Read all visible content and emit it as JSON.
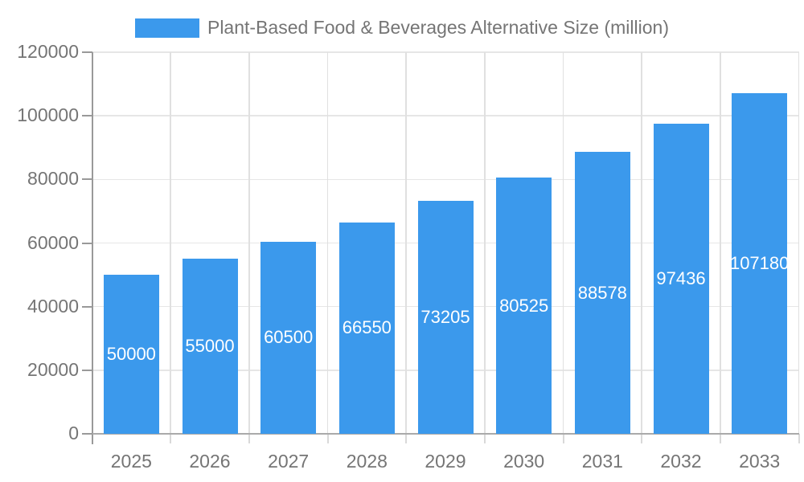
{
  "chart_data": {
    "type": "bar",
    "title": "Plant-Based Food & Beverages Alternative Size (million)",
    "categories": [
      "2025",
      "2026",
      "2027",
      "2028",
      "2029",
      "2030",
      "2031",
      "2032",
      "2033"
    ],
    "values": [
      50000,
      55000,
      60500,
      66550,
      73205,
      80525,
      88578,
      97436,
      107180
    ],
    "bar_labels": [
      "50000",
      "55000",
      "60500",
      "66550",
      "73205",
      "80525",
      "88578",
      "97436",
      "107180"
    ],
    "xlabel": "",
    "ylabel": "",
    "ylim": [
      0,
      120000
    ],
    "yticks": [
      "0",
      "20000",
      "40000",
      "60000",
      "80000",
      "100000",
      "120000"
    ],
    "grid": true,
    "legend": {
      "position": "top",
      "label": "Plant-Based Food & Beverages Alternative Size (million)"
    }
  },
  "colors": {
    "bar": "#3b99ec",
    "bar_value_text": "#ffffff",
    "axis_text": "#757575",
    "grid_line_h": "#e6e6e6",
    "grid_line_v": "#e0e0e0",
    "axis_line_left": "#999999",
    "axis_line_bottom": "#aaaaaa",
    "bottom_tick": "#d9d9d9",
    "background": "#ffffff"
  }
}
